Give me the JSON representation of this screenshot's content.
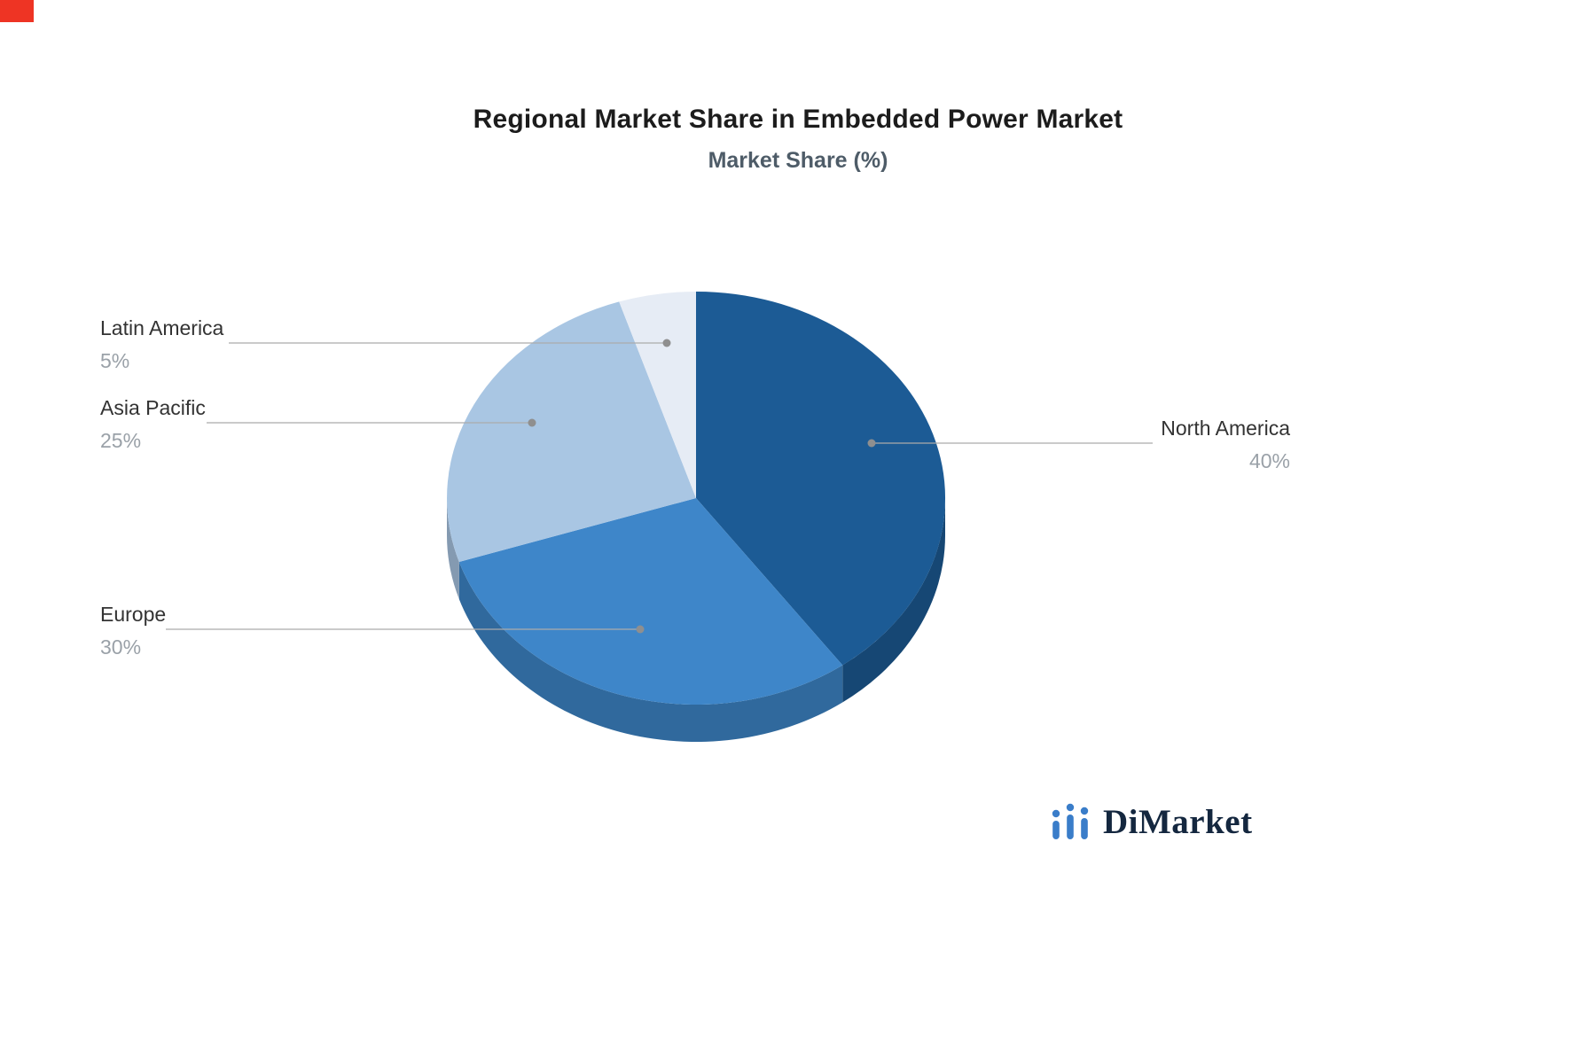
{
  "page": {
    "background": "#ffffff"
  },
  "chart_data": {
    "type": "pie",
    "title": "Regional Market Share in Embedded Power Market",
    "subtitle": "Market Share (%)",
    "effect": "3d",
    "start_angle_deg": 0,
    "direction": "clockwise",
    "unit": "%",
    "slices": [
      {
        "label": "North America",
        "value": 40,
        "value_text": "40%",
        "color": "#1c5b95"
      },
      {
        "label": "Europe",
        "value": 30,
        "value_text": "30%",
        "color": "#3e86c9"
      },
      {
        "label": "Asia Pacific",
        "value": 25,
        "value_text": "25%",
        "color": "#a9c6e3"
      },
      {
        "label": "Latin America",
        "value": 5,
        "value_text": "5%",
        "color": "#e6ecf5"
      }
    ],
    "label_name_color": "#333333",
    "label_value_color": "#9aa1a8",
    "leader_line_color": "#ababab",
    "leader_dot_color": "#8f8f8f",
    "legend_position": "none",
    "grid": false
  },
  "brand": {
    "name": "DiMarket",
    "text_color": "#14273f",
    "icon_color": "#3a7dc9"
  },
  "artifact": {
    "corner_marker_color": "#ee3424"
  }
}
